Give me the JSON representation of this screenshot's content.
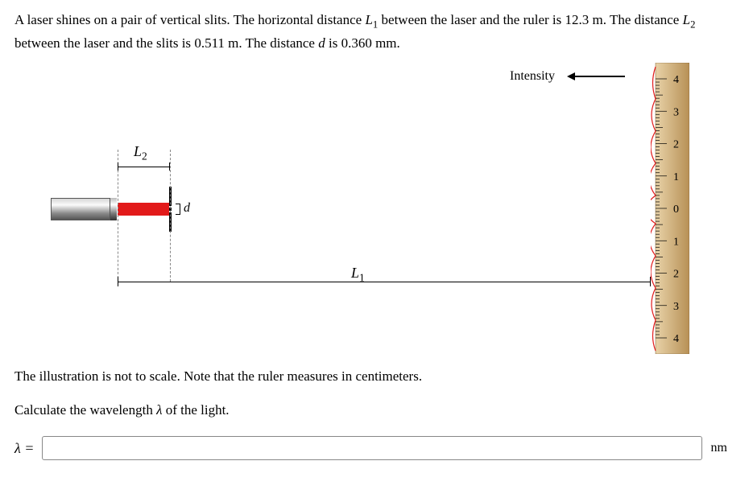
{
  "problem": {
    "line1_a": "A laser shines on a pair of vertical slits. The horizontal distance ",
    "L1_sym": "L",
    "L1_sub": "1",
    "line1_b": " between the laser and the ruler is ",
    "L1_val": "12.3 m",
    "line1_c": ". The distance ",
    "L2_sym": "L",
    "L2_sub": "2",
    "line2_a": "between the laser and the slits is ",
    "L2_val": "0.511 m",
    "line2_b": ". The distance ",
    "d_sym": "d",
    "line2_c": " is ",
    "d_val": "0.360 mm",
    "line2_d": "."
  },
  "figure": {
    "intensity_label": "Intensity",
    "d_label": "d",
    "L1_label": "L",
    "L1_sub": "1",
    "L2_label": "L",
    "L2_sub": "2",
    "ruler": {
      "ticks": [
        "4",
        "3",
        "2",
        "1",
        "0",
        "1",
        "2",
        "3",
        "4"
      ],
      "tick_color": "#000000",
      "ruler_fill_left": "#e8d2a8",
      "ruler_fill_right": "#b79055",
      "wave_color": "#e21a1a"
    },
    "colors": {
      "beam": "#e21a1a",
      "laser_light": "#d6d6d6",
      "laser_dark": "#555555",
      "dash": "#888888"
    }
  },
  "note": "The illustration is not to scale. Note that the ruler measures in centimeters.",
  "question": {
    "prefix": "Calculate the wavelength ",
    "lambda": "λ",
    "suffix": " of the light."
  },
  "answer": {
    "lambda_label": "λ =",
    "value": "",
    "unit": "nm"
  }
}
